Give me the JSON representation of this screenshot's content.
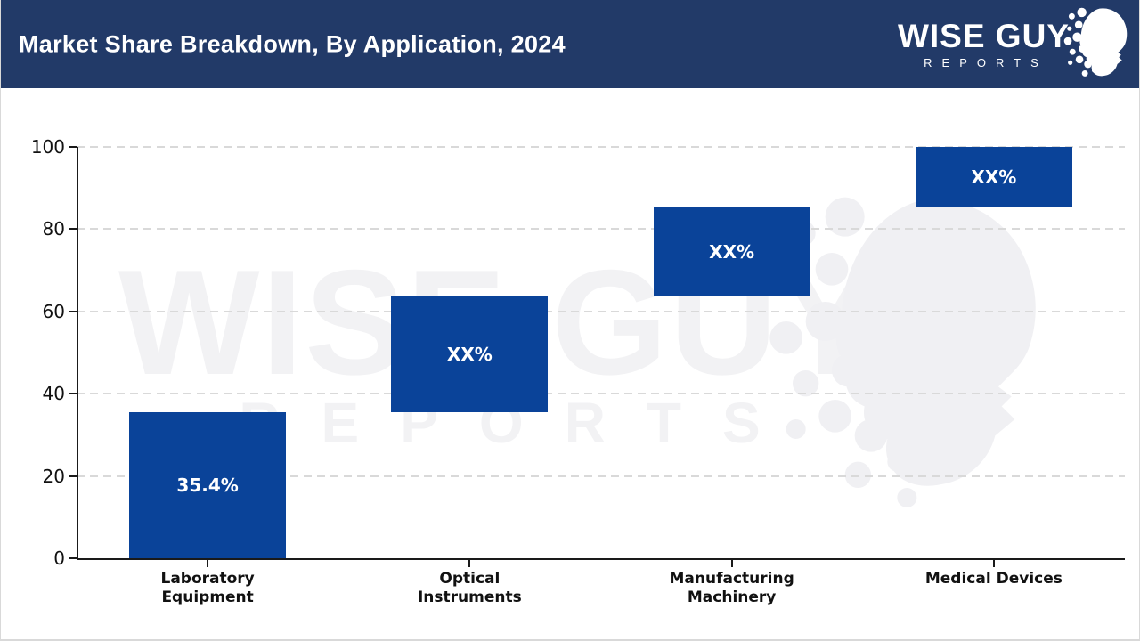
{
  "header": {
    "title": "Market Share Breakdown, By Application, 2024",
    "background_color": "#223a68",
    "logo": {
      "line1": "WISE GUY",
      "line2": "REPORTS",
      "icon": "wiseguy-dotted-head-icon"
    }
  },
  "watermark": {
    "line1": "WISE GUY",
    "line2": "REPORTS",
    "icon": "wiseguy-dotted-head-icon"
  },
  "chart_data": {
    "type": "bar",
    "subtype": "waterfall",
    "title": "Market Share Breakdown, By Application, 2024",
    "categories": [
      "Laboratory\nEquipment",
      "Optical\nInstruments",
      "Manufacturing\nMachinery",
      "Medical Devices"
    ],
    "segments": [
      {
        "category": "Laboratory Equipment",
        "start": 0,
        "end": 35.4,
        "label": "35.4%"
      },
      {
        "category": "Optical Instruments",
        "start": 35.4,
        "end": 63.9,
        "label": "XX%"
      },
      {
        "category": "Manufacturing Machinery",
        "start": 63.9,
        "end": 85.2,
        "label": "XX%"
      },
      {
        "category": "Medical Devices",
        "start": 85.2,
        "end": 100,
        "label": "XX%"
      }
    ],
    "xlabel": "",
    "ylabel": "",
    "ylim": [
      0,
      100
    ],
    "yticks": [
      0,
      20,
      40,
      60,
      80,
      100
    ],
    "grid": "horizontal-dashed",
    "legend": "none",
    "colors": {
      "bar": "#0a4399",
      "bar_label": "#ffffff",
      "axis": "#1a1a1a",
      "gridline": "#d9d9d9",
      "watermark": "#f2f2f4"
    }
  }
}
